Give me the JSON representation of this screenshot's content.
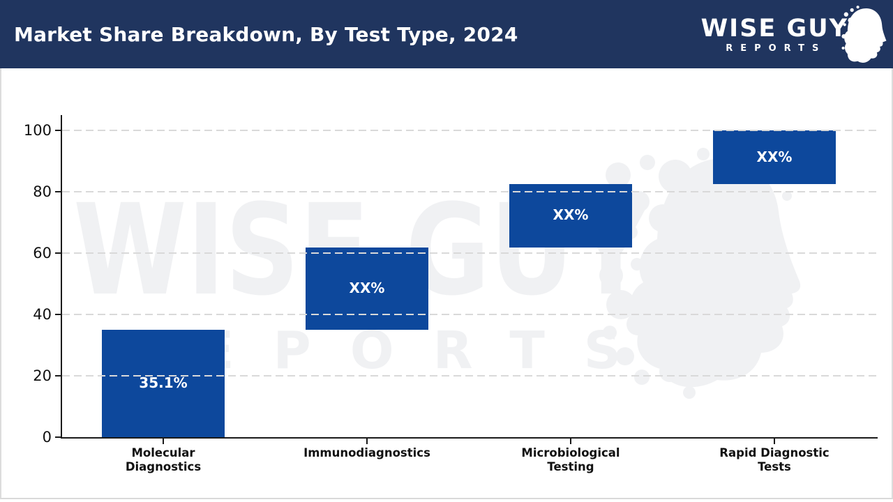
{
  "header": {
    "title": "Market Share Breakdown, By Test Type, 2024",
    "bg_color": "#20355f",
    "logo": {
      "line1": "WISE GUY",
      "line2": "REPORTS"
    }
  },
  "watermark": {
    "line1": "WISE GUY",
    "line2": "REPORTS"
  },
  "chart_data": {
    "type": "bar",
    "subtype": "waterfall",
    "title": "Market Share Breakdown, By Test Type, 2024",
    "xlabel": "",
    "ylabel": "",
    "ylim": [
      0,
      105
    ],
    "yticks": [
      0,
      20,
      40,
      60,
      80,
      100
    ],
    "grid": {
      "horizontal": true,
      "style": "dashed"
    },
    "legend": "none",
    "categories": [
      {
        "lines": [
          "Molecular",
          "Diagnostics"
        ]
      },
      {
        "lines": [
          "Immunodiagnostics"
        ]
      },
      {
        "lines": [
          "Microbiological",
          "Testing"
        ]
      },
      {
        "lines": [
          "Rapid Diagnostic",
          "Tests"
        ]
      }
    ],
    "segments": [
      {
        "label": "35.1%",
        "start": 0,
        "end": 35.1
      },
      {
        "label": "XX%",
        "start": 35.1,
        "end": 61.9
      },
      {
        "label": "XX%",
        "start": 61.9,
        "end": 82.5
      },
      {
        "label": "XX%",
        "start": 82.5,
        "end": 100
      }
    ],
    "colors": {
      "bar": "#0d489c",
      "bar_label": "#ffffff",
      "grid": "#d9d9d9",
      "axis": "#1a1a1a",
      "tick_label": "#111111"
    }
  }
}
